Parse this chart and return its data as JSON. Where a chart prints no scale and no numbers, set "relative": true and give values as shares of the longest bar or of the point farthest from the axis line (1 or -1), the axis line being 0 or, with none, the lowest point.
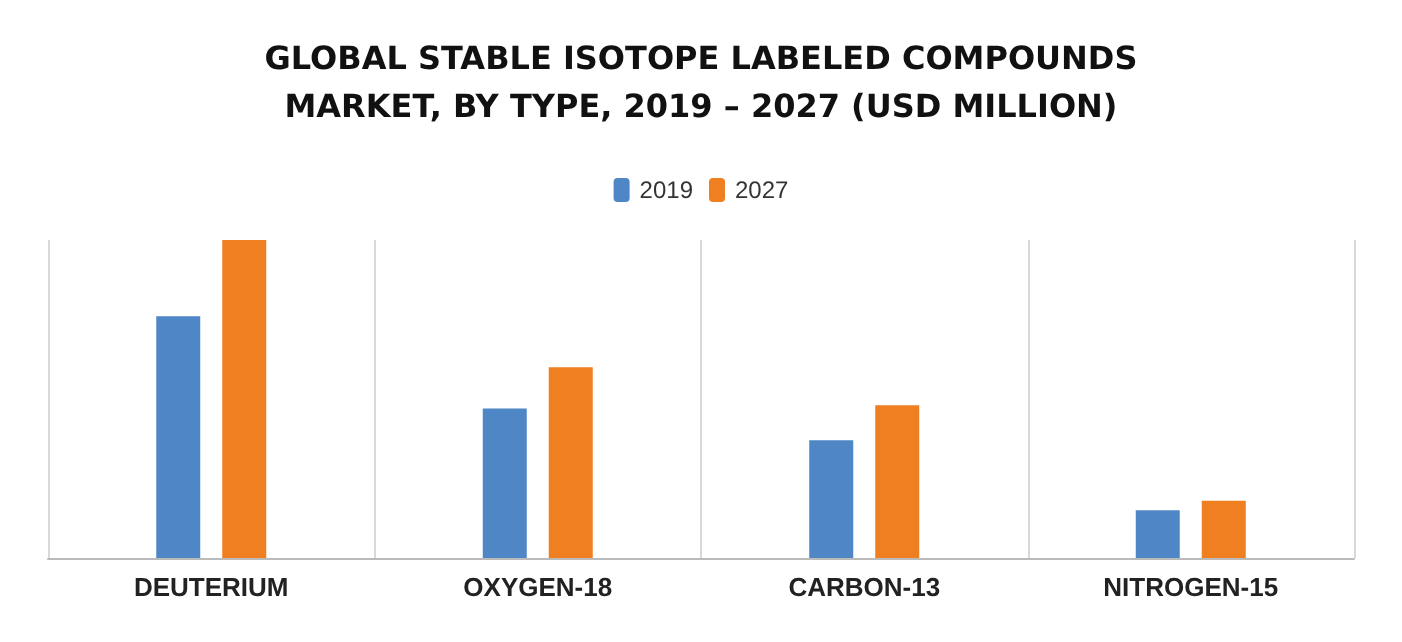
{
  "chart_data": {
    "type": "bar",
    "title": "GLOBAL STABLE ISOTOPE LABELED COMPOUNDS\nMARKET, BY TYPE, 2019 – 2027 (USD MILLION)",
    "categories": [
      "DEUTERIUM",
      "OXYGEN-18",
      "CARBON-13",
      "NITROGEN-15"
    ],
    "series": [
      {
        "name": "2019",
        "color": "#4f86c6",
        "values": [
          0.76,
          0.47,
          0.37,
          0.15
        ]
      },
      {
        "name": "2027",
        "color": "#f07f22",
        "values": [
          1,
          0.6,
          0.48,
          0.18
        ]
      }
    ],
    "relative": true,
    "grid": "x",
    "legend": "top"
  }
}
